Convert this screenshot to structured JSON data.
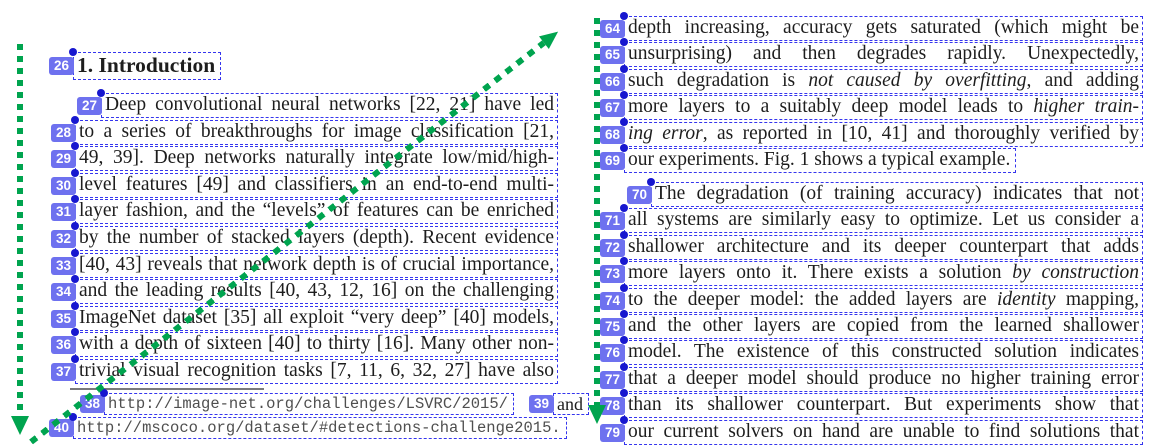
{
  "annotation_overlay": {
    "badge_color": "#6e71ef",
    "box_border_color": "#3535ee",
    "corner_dot_color": "#1717cf",
    "arrow_color": "#00a44f",
    "arrow_icons": [
      "left-vertical-down-arrow",
      "diagonal-up-right-arrow",
      "right-vertical-down-arrow"
    ]
  },
  "document": {
    "left_column": {
      "heading": {
        "id": "26",
        "text": "1. Introduction"
      },
      "lines": [
        {
          "id": "27",
          "indent": true,
          "segments": [
            {
              "text": "Deep convolutional neural networks [22, 21] have led"
            }
          ]
        },
        {
          "id": "28",
          "segments": [
            {
              "text": "to a series of breakthroughs for image classification [21,"
            }
          ]
        },
        {
          "id": "29",
          "segments": [
            {
              "text": "49, 39].  Deep networks naturally integrate low/mid/high-"
            }
          ]
        },
        {
          "id": "30",
          "segments": [
            {
              "text": "level features [49] and classifiers in an end-to-end multi-"
            }
          ]
        },
        {
          "id": "31",
          "segments": [
            {
              "text": "layer fashion, and the “levels” of features can be enriched"
            }
          ]
        },
        {
          "id": "32",
          "segments": [
            {
              "text": "by the number of stacked layers (depth).  Recent evidence"
            }
          ]
        },
        {
          "id": "33",
          "segments": [
            {
              "text": "[40, 43] reveals that network depth is of crucial importance,"
            }
          ]
        },
        {
          "id": "34",
          "segments": [
            {
              "text": "and the leading results [40, 43, 12, 16] on the challenging"
            }
          ]
        },
        {
          "id": "35",
          "segments": [
            {
              "text": "ImageNet dataset [35] all exploit “very deep” [40] models,"
            }
          ]
        },
        {
          "id": "36",
          "segments": [
            {
              "text": "with a depth of sixteen [40] to thirty [16]. Many other non-"
            }
          ]
        },
        {
          "id": "37",
          "segments": [
            {
              "text": "trivial visual recognition tasks [7, 11, 6, 32, 27] have also"
            }
          ]
        }
      ],
      "footnotes": [
        {
          "id": "38",
          "mono": true,
          "text": "http://image-net.org/challenges/LSVRC/2015/"
        },
        {
          "id": "39",
          "mono": false,
          "text": "and"
        },
        {
          "id": "40",
          "mono": true,
          "text": "http://mscoco.org/dataset/#detections-challenge2015."
        }
      ]
    },
    "right_column": {
      "lines": [
        {
          "id": "64",
          "segments": [
            {
              "text": "depth increasing, accuracy gets saturated (which might be"
            }
          ]
        },
        {
          "id": "65",
          "segments": [
            {
              "text": "unsurprising) and then degrades rapidly.  Unexpectedly,"
            }
          ]
        },
        {
          "id": "66",
          "segments": [
            {
              "text": "such degradation is "
            },
            {
              "text": "not caused by overfitting",
              "italic": true
            },
            {
              "text": ", and adding"
            }
          ]
        },
        {
          "id": "67",
          "segments": [
            {
              "text": "more layers to a suitably deep model leads to "
            },
            {
              "text": "higher train-",
              "italic": true
            }
          ]
        },
        {
          "id": "68",
          "segments": [
            {
              "text": "ing error",
              "italic": true
            },
            {
              "text": ", as reported in [10, 41] and thoroughly verified by"
            }
          ]
        },
        {
          "id": "69",
          "fit": true,
          "segments": [
            {
              "text": "our experiments. Fig. 1 shows a typical example."
            }
          ]
        },
        {
          "id": "70",
          "indent": true,
          "segments": [
            {
              "text": "The degradation (of training accuracy) indicates that not"
            }
          ]
        },
        {
          "id": "71",
          "segments": [
            {
              "text": "all systems are similarly easy to optimize. Let us consider a"
            }
          ]
        },
        {
          "id": "72",
          "segments": [
            {
              "text": "shallower architecture and its deeper counterpart that adds"
            }
          ]
        },
        {
          "id": "73",
          "segments": [
            {
              "text": "more layers onto it. There exists a solution "
            },
            {
              "text": "by construction",
              "italic": true
            }
          ]
        },
        {
          "id": "74",
          "segments": [
            {
              "text": "to the deeper model: the added layers are "
            },
            {
              "text": "identity",
              "italic": true
            },
            {
              "text": " mapping,"
            }
          ]
        },
        {
          "id": "75",
          "segments": [
            {
              "text": "and the other layers are copied from the learned shallower"
            }
          ]
        },
        {
          "id": "76",
          "segments": [
            {
              "text": "model. The existence of this constructed solution indicates"
            }
          ]
        },
        {
          "id": "77",
          "segments": [
            {
              "text": "that a deeper model should produce no higher training error"
            }
          ]
        },
        {
          "id": "78",
          "segments": [
            {
              "text": "than its shallower counterpart.  But experiments show that"
            }
          ]
        },
        {
          "id": "79",
          "segments": [
            {
              "text": "our current solvers on hand are unable to find solutions that"
            }
          ]
        }
      ]
    }
  }
}
